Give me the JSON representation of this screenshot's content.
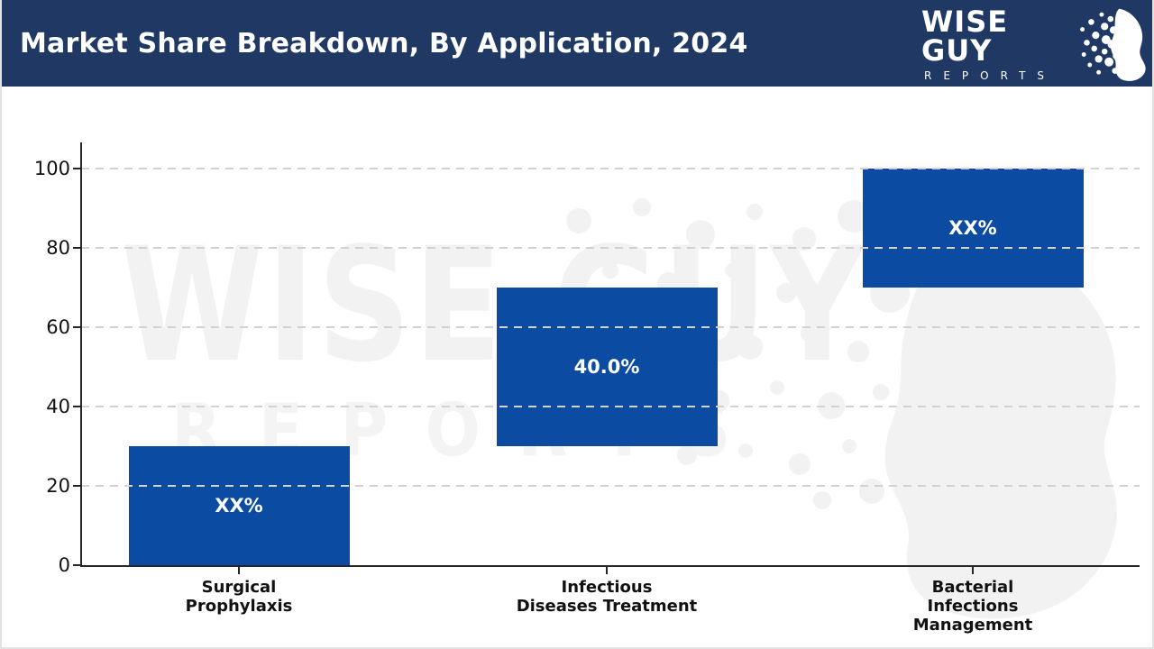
{
  "header": {
    "title": "Market Share Breakdown, By Application, 2024",
    "bg_color": "#1f3864",
    "logo": {
      "name": "WISE GUY",
      "sub": "REPORTS"
    }
  },
  "watermark": {
    "line1": "WISE GUY",
    "line2": "REPORTS"
  },
  "chart_data": {
    "type": "bar",
    "subtype": "floating-segment (waterfall-style market share)",
    "title": "Market Share Breakdown, By Application, 2024",
    "categories": [
      "Surgical Prophylaxis",
      "Infectious Diseases Treatment",
      "Bacterial Infections Management"
    ],
    "bars": [
      {
        "category_lines": "Surgical\nProphylaxis",
        "start": 0,
        "end": 30,
        "value_label": "XX%"
      },
      {
        "category_lines": "Infectious\nDiseases Treatment",
        "start": 30,
        "end": 70,
        "value_label": "40.0%"
      },
      {
        "category_lines": "Bacterial\nInfections\nManagement",
        "start": 70,
        "end": 100,
        "value_label": "XX%"
      }
    ],
    "yticks": [
      0,
      20,
      40,
      60,
      80,
      100
    ],
    "ytick_labels": [
      "0",
      "20",
      "40",
      "60",
      "80",
      "100"
    ],
    "ylim": [
      0,
      105
    ],
    "xlabel": "",
    "ylabel": "",
    "grid": "horizontal dashed, drawn over bars",
    "legend": "none",
    "bar_color": "#0b4ba1",
    "header_color": "#1f3864",
    "gridline_color": "#d2d2d2",
    "watermark_color": "#f2f2f2"
  }
}
